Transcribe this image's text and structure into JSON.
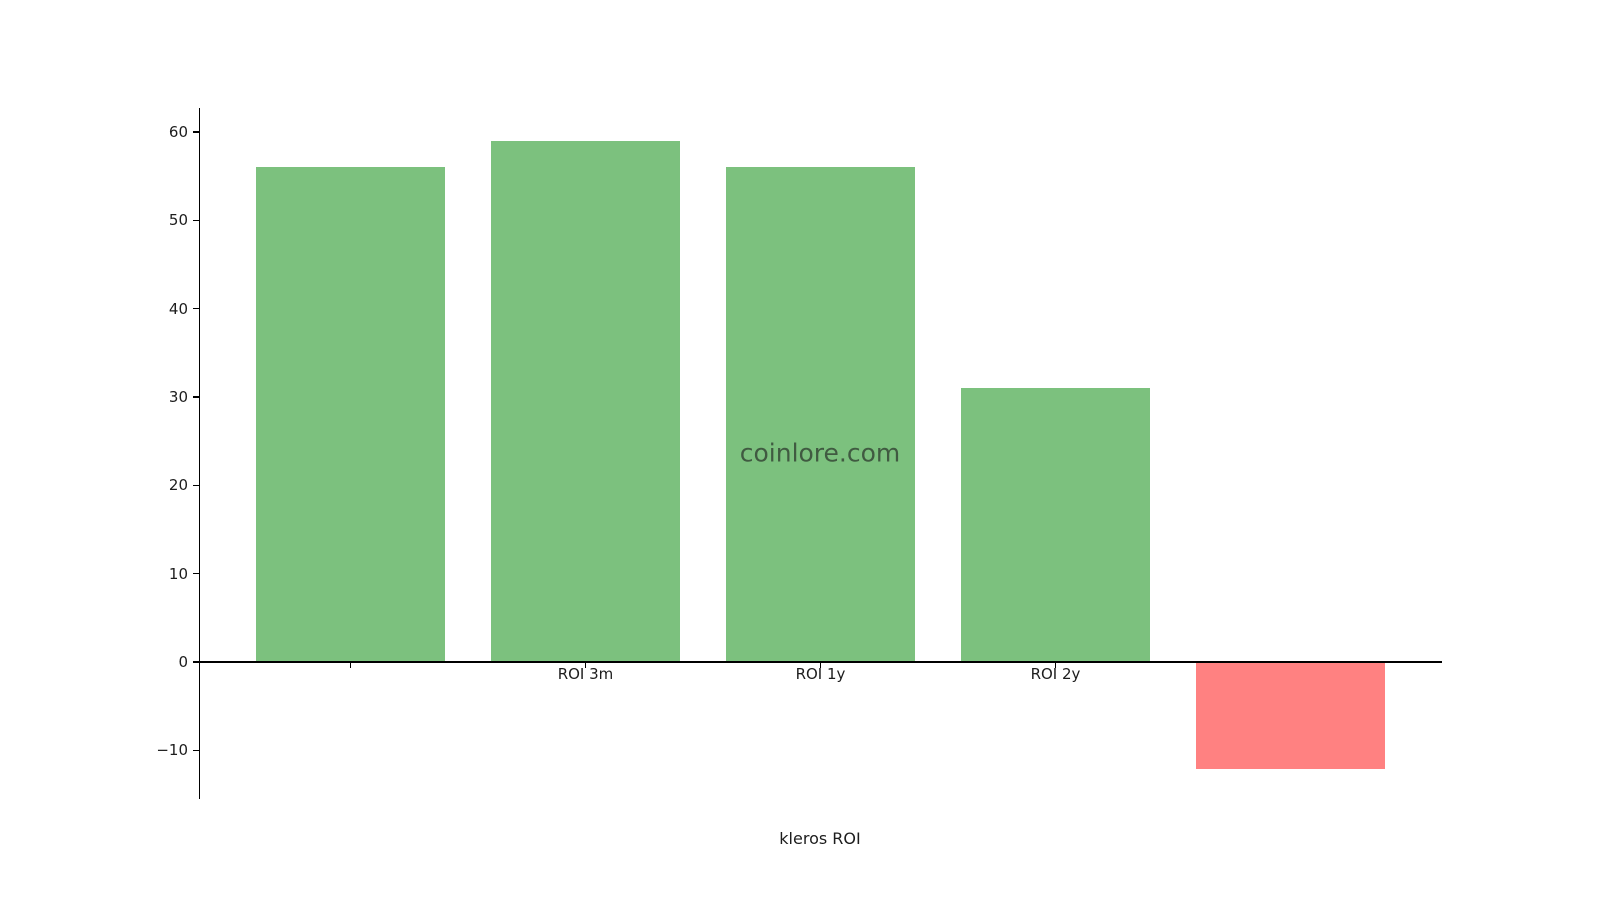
{
  "figure": {
    "watermark": "coinlore.com",
    "background_color": "#ffffff"
  },
  "chart_data": {
    "type": "bar",
    "title": "",
    "xlabel": "kleros ROI",
    "ylabel": "",
    "categories": [
      "",
      "ROI 3m",
      "ROI 1y",
      "ROI 2y",
      ""
    ],
    "values": [
      56,
      59,
      56,
      31,
      -12
    ],
    "yticks": [
      60,
      50,
      40,
      30,
      20,
      10,
      0,
      -10
    ],
    "ylim": [
      -15.5,
      62.7
    ],
    "grid": false,
    "legend": "none",
    "colors": {
      "positive_bar": "#7cc17e",
      "negative_bar": "#ff8181",
      "axis_line": "#000000",
      "tick_label": "#1d1d1d",
      "watermark": "rgba(28,28,28,0.62)"
    }
  }
}
